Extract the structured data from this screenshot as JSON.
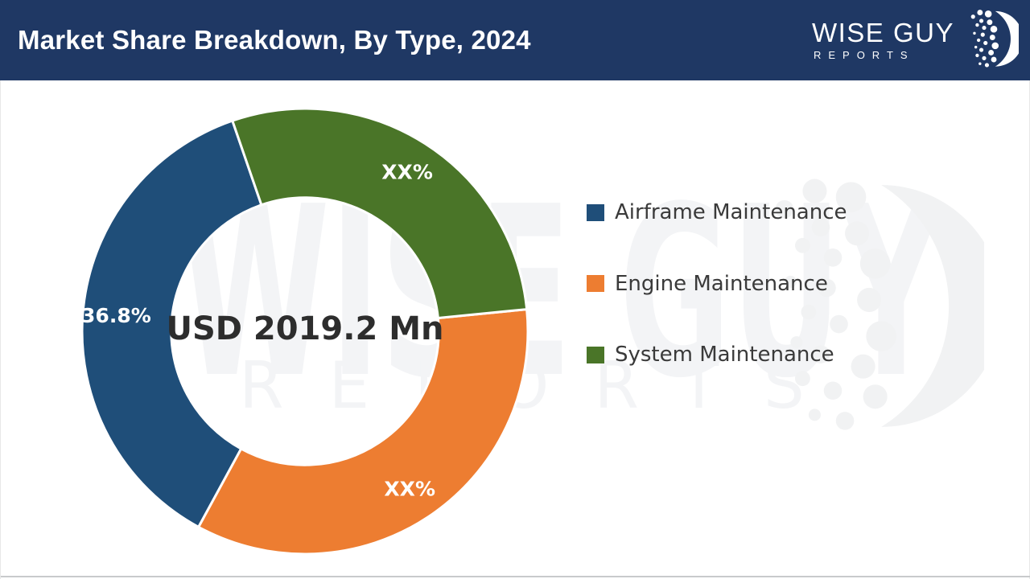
{
  "header": {
    "title": "Market Share Breakdown, By Type, 2024"
  },
  "logo": {
    "brand": "WISE GUY",
    "sub": "REPORTS",
    "face_icon": "dotted-head-profile"
  },
  "watermark": {
    "line1": "WISE GUY",
    "line2": "REPORTS",
    "face_icon": "dotted-head-profile"
  },
  "colors": {
    "header_bg": "#1f3864",
    "airframe_blue": "#1f4e79",
    "engine_orange": "#ed7d31",
    "system_green": "#4a7528",
    "slice_edge": "#ffffff",
    "center_text": "#2d2d2d",
    "legend_text": "#3a3a3a",
    "footer_line": "#c8cacc"
  },
  "chart_data": {
    "type": "pie",
    "subtype": "donut",
    "title": "Market Share Breakdown, By Type, 2024",
    "center_label": "USD 2019.2 Mn",
    "start_angle_deg": 109,
    "direction": "counterclockwise",
    "inner_ratio": 0.6,
    "label_radius_ratio": 0.85,
    "legend_position": "right",
    "segments": [
      {
        "name": "Airframe Maintenance",
        "value": 36.8,
        "display_label": "36.8%",
        "color": "#1f4e79"
      },
      {
        "name": "Engine Maintenance",
        "value": 34.5,
        "display_label": "XX%",
        "color": "#ed7d31"
      },
      {
        "name": "System Maintenance",
        "value": 28.7,
        "display_label": "XX%",
        "color": "#4a7528"
      }
    ]
  },
  "legend": {
    "items": [
      {
        "label": "Airframe Maintenance",
        "color": "#1f4e79"
      },
      {
        "label": "Engine Maintenance",
        "color": "#ed7d31"
      },
      {
        "label": "System Maintenance",
        "color": "#4a7528"
      }
    ]
  }
}
